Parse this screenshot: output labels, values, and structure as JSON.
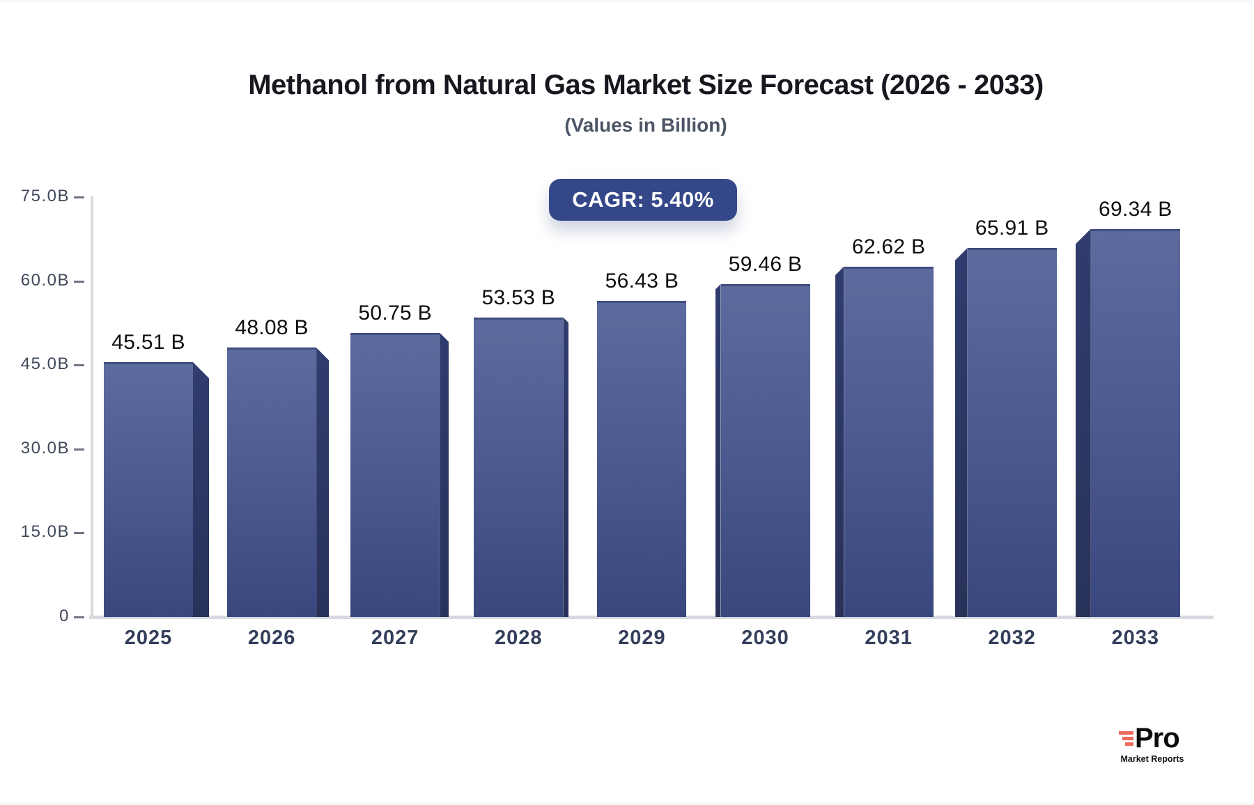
{
  "title": "Methanol from Natural Gas Market Size Forecast (2026 - 2033)",
  "subtitle": "(Values in Billion)",
  "badge": {
    "label": "CAGR: 5.40%"
  },
  "logo": {
    "brand": "Pro",
    "tagline": "Market Reports"
  },
  "colors": {
    "bar_face_top": "#5d6a9e",
    "bar_face_bottom": "#3a477f",
    "bar_side": "#2c3866",
    "badge_bg": "#344889",
    "axis_gray": "#d7d9de",
    "logo_accent": "#f06a5c"
  },
  "chart_data": {
    "type": "bar",
    "title": "Methanol from Natural Gas Market Size Forecast (2026 - 2033)",
    "subtitle": "(Values in Billion)",
    "categories": [
      "2025",
      "2026",
      "2027",
      "2028",
      "2029",
      "2030",
      "2031",
      "2032",
      "2033"
    ],
    "values": [
      45.51,
      48.08,
      50.75,
      53.53,
      56.43,
      59.46,
      62.62,
      65.91,
      69.34
    ],
    "bar_labels": [
      "45.51 B",
      "48.08 B",
      "50.75 B",
      "53.53 B",
      "56.43 B",
      "59.46 B",
      "62.62 B",
      "65.91 B",
      "69.34 B"
    ],
    "y_ticks": [
      {
        "value": 75,
        "label": "75.0B"
      },
      {
        "value": 60,
        "label": "60.0B"
      },
      {
        "value": 45,
        "label": "45.0B"
      },
      {
        "value": 30,
        "label": "30.0B"
      },
      {
        "value": 15,
        "label": "15.0B"
      },
      {
        "value": 0,
        "label": "0"
      }
    ],
    "ylim": [
      0,
      75
    ],
    "xlabel": "",
    "ylabel": "",
    "grid": false,
    "legend": "none",
    "cagr": "CAGR: 5.40%",
    "style": "3d-perspective-bars"
  }
}
